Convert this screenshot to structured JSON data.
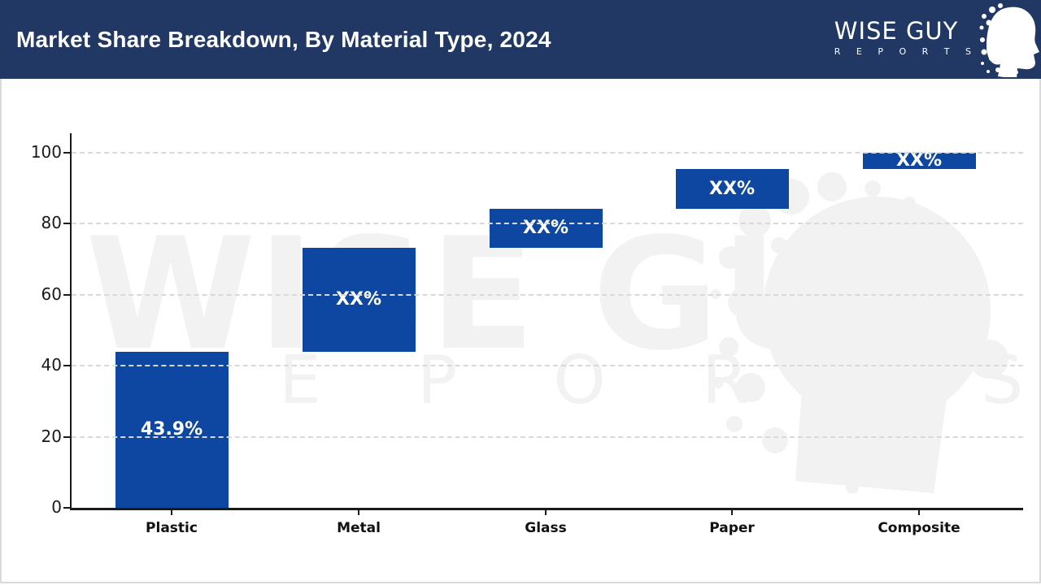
{
  "header": {
    "title": "Market Share Breakdown, By Material Type, 2024",
    "logo": {
      "wordmark": "WISE GUY",
      "subtext": "R E P O R T S"
    }
  },
  "watermark": {
    "line1": "WISE GUY",
    "line2": "R E P O R T S"
  },
  "colors": {
    "header_bg": "#213864",
    "bar": "#0d47a1",
    "grid": "#d9d9d9",
    "axis": "#1a1a1a",
    "bar_label": "#ffffff",
    "watermark": "#f2f2f2",
    "logo_text": "#ffffff"
  },
  "chart_data": {
    "type": "bar",
    "subtype": "waterfall",
    "title": "Market Share Breakdown, By Material Type, 2024",
    "categories": [
      "Plastic",
      "Metal",
      "Glass",
      "Paper",
      "Composite"
    ],
    "series": [
      {
        "name": "Plastic",
        "start": 0,
        "end": 43.9,
        "label": "43.9%"
      },
      {
        "name": "Metal",
        "start": 43.9,
        "end": 73.2,
        "label": "XX%"
      },
      {
        "name": "Glass",
        "start": 73.2,
        "end": 84.2,
        "label": "XX%"
      },
      {
        "name": "Paper",
        "start": 84.2,
        "end": 95.3,
        "label": "XX%"
      },
      {
        "name": "Composite",
        "start": 95.3,
        "end": 100,
        "label": "XX%"
      }
    ],
    "xlabel": "",
    "ylabel": "",
    "yticks": [
      0,
      20,
      40,
      60,
      80,
      100
    ],
    "ylim": [
      0,
      104
    ],
    "grid": "horizontal-dashed",
    "legend": "none"
  }
}
